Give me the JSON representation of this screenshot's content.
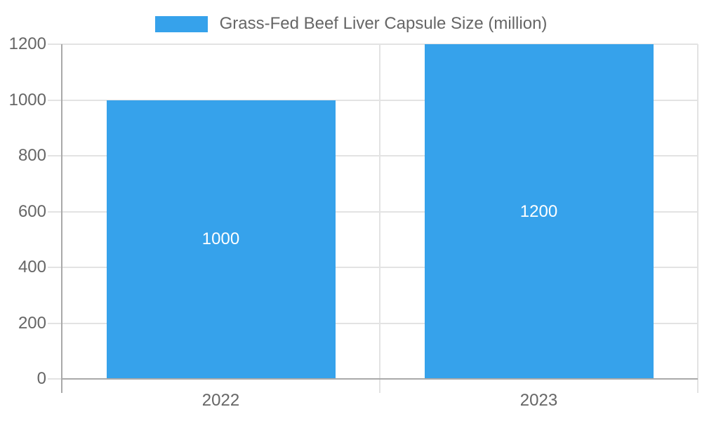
{
  "chart_data": {
    "type": "bar",
    "title": "",
    "xlabel": "",
    "ylabel": "",
    "categories": [
      "2022",
      "2023"
    ],
    "series": [
      {
        "name": "Grass-Fed Beef Liver Capsule Size (million)",
        "values": [
          1000,
          1200
        ]
      }
    ],
    "data_labels": [
      "1000",
      "1200"
    ],
    "ytick_labels": [
      "0",
      "200",
      "400",
      "600",
      "800",
      "1000",
      "1200"
    ],
    "ylim": [
      0,
      1200
    ],
    "ytick_step": 200,
    "grid": true,
    "legend_position": "top",
    "colors": {
      "bar": "#36A2EB",
      "data_label": "#ffffff",
      "grid": "#e3e3e3",
      "axis": "#a9a9a9",
      "text": "#666666",
      "background": "#ffffff"
    }
  }
}
